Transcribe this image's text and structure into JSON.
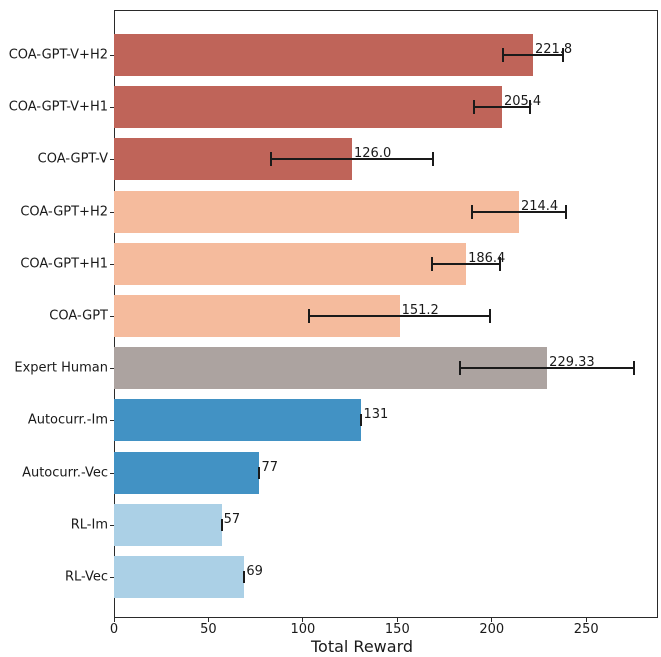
{
  "chart_data": {
    "type": "bar",
    "orientation": "horizontal",
    "title": "",
    "xlabel": "Total Reward",
    "ylabel": "",
    "xlim": [
      0,
      288
    ],
    "xticks": [
      0,
      50,
      100,
      150,
      200,
      250
    ],
    "grid": false,
    "legend_position": "none",
    "categories": [
      "COA-GPT-V+H2",
      "COA-GPT-V+H1",
      "COA-GPT-V",
      "COA-GPT+H2",
      "COA-GPT+H1",
      "COA-GPT",
      "Expert Human",
      "Autocurr.-Im",
      "Autocurr.-Vec",
      "RL-Im",
      "RL-Vec"
    ],
    "values": [
      221.8,
      205.4,
      126.0,
      214.4,
      186.4,
      151.2,
      229.33,
      131,
      77,
      57,
      69
    ],
    "value_labels": [
      "221.8",
      "205.4",
      "126.0",
      "214.4",
      "186.4",
      "151.2",
      "229.33",
      "131",
      "77",
      "57",
      "69"
    ],
    "errors": [
      16,
      15,
      43,
      25,
      18,
      48,
      46,
      0,
      0,
      0,
      0
    ],
    "bar_colors": [
      "#bf6459",
      "#bf6459",
      "#bf6459",
      "#f5bb9d",
      "#f5bb9d",
      "#f5bb9d",
      "#aca3a0",
      "#4292c4",
      "#4292c4",
      "#abd0e6",
      "#abd0e6"
    ],
    "error_color": "#1a1a1a",
    "spine_color": "#2a2a2a"
  }
}
